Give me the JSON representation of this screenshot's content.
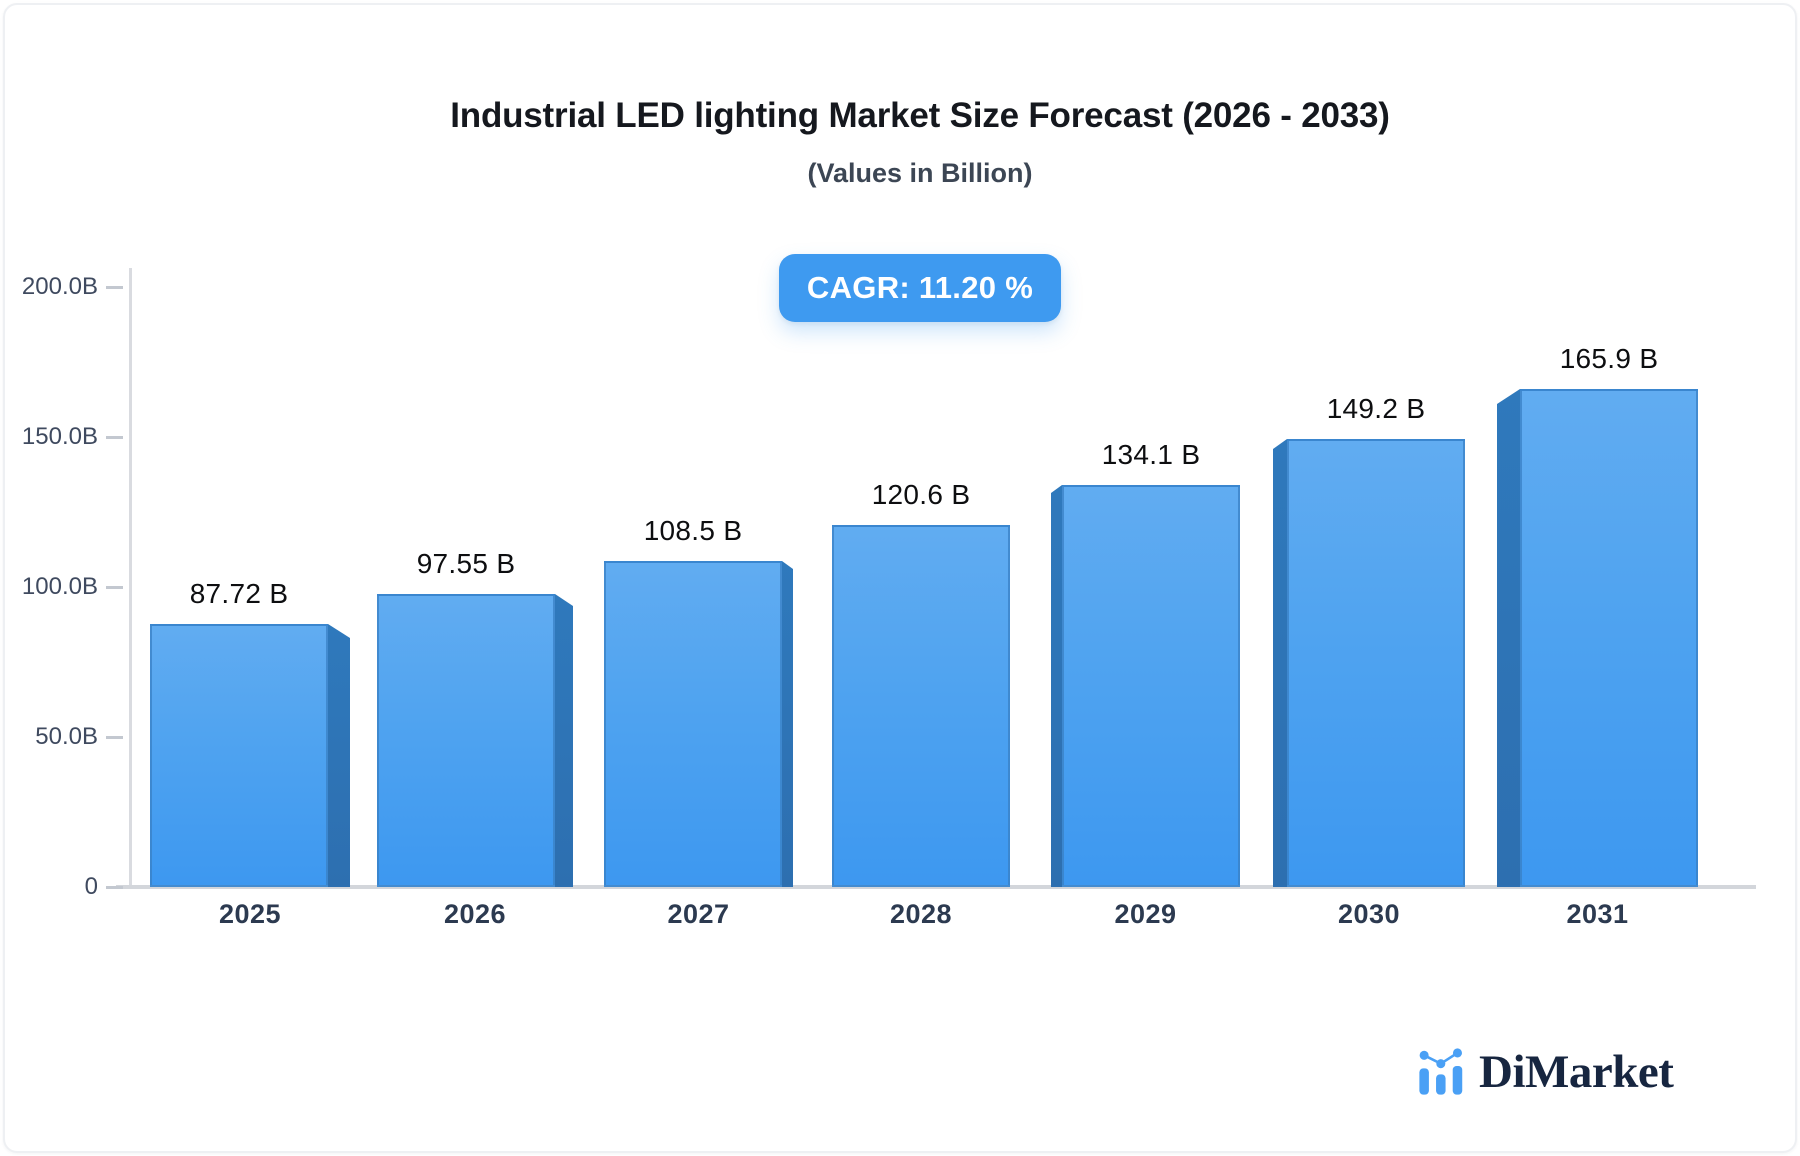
{
  "header": {
    "title": "Industrial LED lighting Market Size Forecast (2026 - 2033)",
    "subtitle": "(Values in Billion)"
  },
  "badge": {
    "label": "CAGR: 11.20 %"
  },
  "chart_data": {
    "type": "bar",
    "title": "Industrial LED lighting Market Size Forecast (2026 - 2033)",
    "subtitle": "(Values in Billion)",
    "categories": [
      "2025",
      "2026",
      "2027",
      "2028",
      "2029",
      "2030",
      "2031"
    ],
    "values": [
      87.72,
      97.55,
      108.5,
      120.6,
      134.1,
      149.2,
      165.9
    ],
    "value_labels": [
      "87.72 B",
      "97.55 B",
      "108.5 B",
      "120.6 B",
      "134.1 B",
      "149.2 B",
      "165.9 B"
    ],
    "cagr_text": "CAGR: 11.20 %",
    "xlabel": "",
    "ylabel": "",
    "ylim": [
      0,
      200
    ],
    "yticks": [
      {
        "value": 200,
        "label": "200.0B"
      },
      {
        "value": 150,
        "label": "150.0B"
      },
      {
        "value": 100,
        "label": "100.0B"
      },
      {
        "value": 50,
        "label": "50.0B"
      },
      {
        "value": 0,
        "label": "0"
      }
    ],
    "grid": false,
    "legend": false,
    "style_3d": true,
    "colors": {
      "bar_top": "#61acf1",
      "bar_bottom": "#3d98f0",
      "bar_side": "#2e76b6",
      "badge_bg": "#3e9af0",
      "axis": "#d5d8dd",
      "label_text": "#0d0e10",
      "tick_text": "#3f4a5f"
    }
  },
  "footer": {
    "brand": "DiMarket"
  }
}
